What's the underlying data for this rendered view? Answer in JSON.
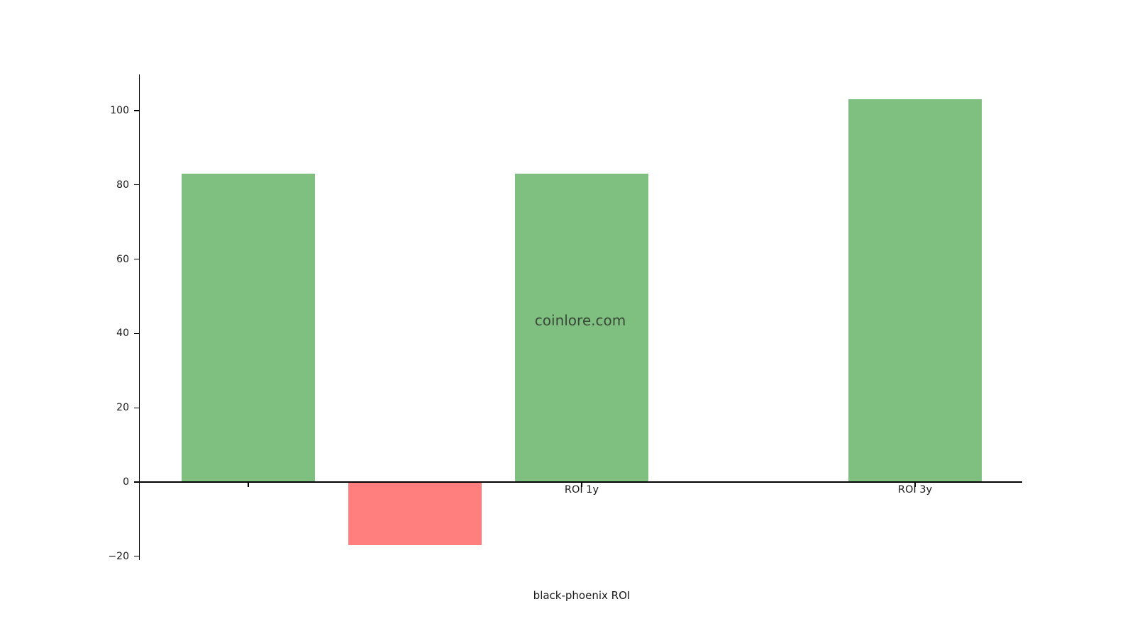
{
  "page": {
    "background_color": "#ffffff"
  },
  "chart_data": {
    "type": "bar",
    "title": "black-phoenix ROI",
    "watermark": "coinlore.com",
    "categories": [
      "",
      "",
      "ROI 1y",
      "ROI 3y"
    ],
    "values": [
      83,
      -17,
      83,
      103
    ],
    "bar_slots": [
      0,
      1,
      2,
      4
    ],
    "slots_total": 5,
    "xlabel": "",
    "ylabel": "",
    "ylim": [
      -24,
      110
    ],
    "yticks": [
      -20,
      0,
      20,
      40,
      60,
      80,
      100
    ],
    "ytick_labels": [
      "−20",
      "0",
      "20",
      "40",
      "60",
      "80",
      "100"
    ],
    "xticks": [
      {
        "slot": 0,
        "label": ""
      },
      {
        "slot": 2,
        "label": "ROI 1y"
      },
      {
        "slot": 4,
        "label": "ROI 3y"
      }
    ],
    "grid": false,
    "legend_position": "none",
    "colors": {
      "positive": "#7fbf7f",
      "negative": "#ff7f7f",
      "axis": "#000000",
      "tick_text": "#1a1a1a",
      "watermark_text": "rgba(38,38,38,0.78)"
    }
  }
}
